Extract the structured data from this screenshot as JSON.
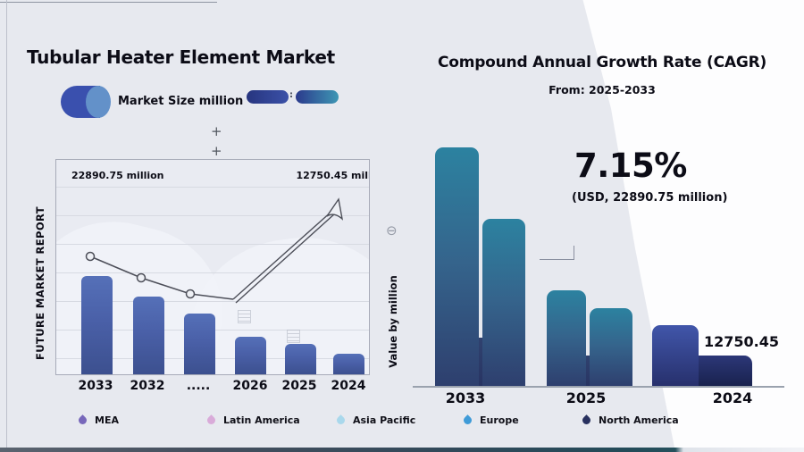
{
  "header": {
    "left_title": "Tubular Heater Element Market",
    "market_size_label": "Market Size million",
    "right_title": "Compound Annual Growth Rate (CAGR)",
    "right_subtitle": "From: 2025-2033",
    "plus_mark": "+",
    "pill_separator": ":"
  },
  "icons": {
    "cylinder_icon": "cylinder",
    "minus_icon_glyph": "⊖"
  },
  "left_chart": {
    "top_left_label": "22890.75 million",
    "top_right_label": "12750.45 million",
    "side_label": "FUTURE MARKET REPORT",
    "value_axis_label": "Value by million"
  },
  "right_chart": {
    "cagr_value": "7.15%",
    "cagr_detail": "(USD, 22890.75 million)",
    "data_label": "12750.45"
  },
  "legend": {
    "items": [
      {
        "label": "MEA",
        "color": "#7767ba"
      },
      {
        "label": "Latin America",
        "color": "#d9abd9"
      },
      {
        "label": "Asia Pacific",
        "color": "#a9d8ec"
      },
      {
        "label": "Europe",
        "color": "#3f9bd8"
      },
      {
        "label": "North America",
        "color": "#28315f"
      }
    ]
  },
  "chart_data": [
    {
      "type": "bar",
      "title": "Tubular Heater Element Market — Market Size million",
      "categories": [
        "2033",
        "2032",
        ".....",
        "2026",
        "2025",
        "2024"
      ],
      "values": [
        1.0,
        0.79,
        0.62,
        0.38,
        0.31,
        0.21
      ],
      "values_note": "relative bar heights; infographic not drawn to numeric scale",
      "labeled_values_million": {
        "2033": 22890.75,
        "2024": 12750.45
      },
      "ylabel": "Value by million",
      "xlabel": "",
      "grid": true,
      "overlay": "declining marker line from 2033 to 2026 then upward double-line arrow toward 12750.45 million label",
      "legend_position": "bottom"
    },
    {
      "type": "bar",
      "title": "Compound Annual Growth Rate (CAGR) From: 2025-2033",
      "categories": [
        "2033",
        "2025",
        "2024"
      ],
      "series": [
        {
          "name": "bar-a",
          "values": [
            1.0,
            0.4,
            0.255
          ]
        },
        {
          "name": "bar-b",
          "values": [
            0.7,
            0.326,
            0.127
          ]
        }
      ],
      "values_note": "relative bar heights; infographic not drawn to numeric scale",
      "cagr_percent": 7.15,
      "base_value_million": 22890.75,
      "data_label_2024": 12750.45,
      "grid": false
    }
  ]
}
